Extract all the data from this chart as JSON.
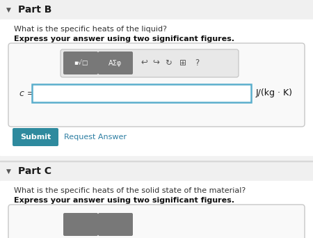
{
  "bg_color": "#f2f2f2",
  "white": "#ffffff",
  "part_b_title": "Part B",
  "question": "What is the specific heats of the liquid?",
  "instruction": "Express your answer using two significant figures.",
  "c_label": "c =",
  "unit": "J/(kg · K)",
  "submit_text": "Submit",
  "request_text": "Request Answer",
  "submit_bg": "#2e8a9e",
  "submit_fg": "#ffffff",
  "request_fg": "#2e7fa3",
  "input_border": "#5aaecc",
  "input_bg": "#ffffff",
  "box_bg": "#f9f9f9",
  "box_border": "#c8c8c8",
  "part_c_title": "Part C",
  "question_c": "What is the specific heats of the solid state of the material?",
  "instruction_c": "Express your answer using two significant figures.",
  "divider_color": "#d8d8d8",
  "arrow_color": "#555555",
  "header_bg": "#f0f0f0",
  "part_c_bg": "#f0f0f0",
  "toolbar_gray": "#787878",
  "toolbar_light_bg": "#e8e8e8",
  "toolbar_border": "#c0c0c0",
  "icon_color": "#555555"
}
